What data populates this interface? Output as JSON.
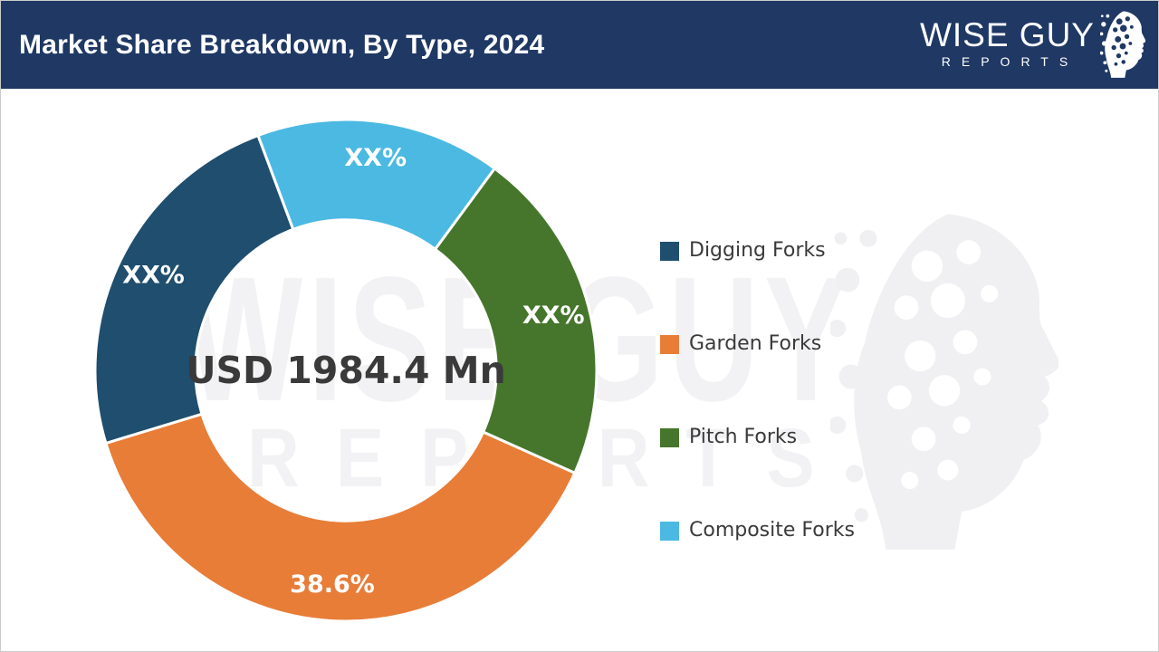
{
  "header": {
    "title": "Market Share Breakdown, By Type, 2024",
    "bar_color": "#1f3864",
    "logo": {
      "line1": "WISE GUY",
      "line2": "REPORTS"
    }
  },
  "watermark": {
    "line1": "WISE GUY",
    "line2": "REPORTS"
  },
  "chart_data": {
    "type": "pie",
    "subtype": "donut",
    "title": "Market Share Breakdown, By Type, 2024",
    "center_label": "USD 1984.4 Mn",
    "categories": [
      "Digging Forks",
      "Garden Forks",
      "Pitch Forks",
      "Composite Forks"
    ],
    "values": [
      24.0,
      38.6,
      21.6,
      15.8
    ],
    "slice_labels": [
      "XX%",
      "38.6%",
      "XX%",
      "XX%"
    ],
    "colors": [
      "#1f4e6e",
      "#e87d38",
      "#46762b",
      "#4bb9e2"
    ],
    "start_angle_deg": 110.5,
    "direction": "counterclockwise",
    "hole_ratio": 0.6,
    "legend_position": "right",
    "label_text_color": "#ffffff",
    "center_text_color": "#3a3a3a"
  }
}
